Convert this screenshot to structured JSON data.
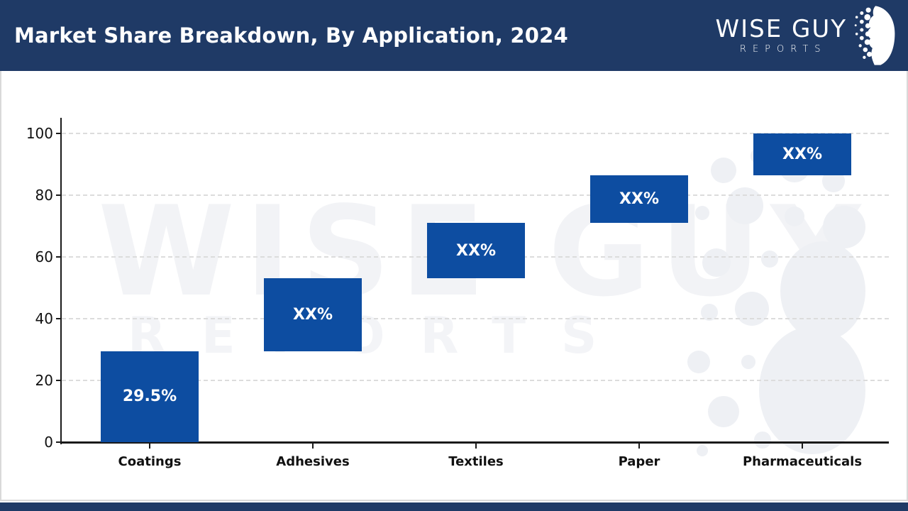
{
  "header": {
    "title": "Market Share Breakdown, By Application, 2024",
    "logo": {
      "line1": "WISE GUY",
      "line2": "REPORTS"
    },
    "bg_color": "#1F3A66",
    "text_color": "#FFFFFF"
  },
  "watermark": {
    "line1": "WISE GUY",
    "line2": "REPORTS",
    "color": "#F2F3F6"
  },
  "footer": {
    "bg_color": "#1F3A66"
  },
  "chart_data": {
    "type": "bar",
    "subtype": "waterfall",
    "title": "Market Share Breakdown, By Application, 2024",
    "categories": [
      "Coatings",
      "Adhesives",
      "Textiles",
      "Paper",
      "Pharmaceuticals"
    ],
    "segments": [
      {
        "category": "Coatings",
        "start": 0,
        "end": 29.5,
        "label": "29.5%"
      },
      {
        "category": "Adhesives",
        "start": 29.5,
        "end": 53.0,
        "label": "XX%"
      },
      {
        "category": "Textiles",
        "start": 53.0,
        "end": 71.0,
        "label": "XX%"
      },
      {
        "category": "Paper",
        "start": 71.0,
        "end": 86.5,
        "label": "XX%"
      },
      {
        "category": "Pharmaceuticals",
        "start": 86.5,
        "end": 100.0,
        "label": "XX%"
      }
    ],
    "yticks": [
      0,
      20,
      40,
      60,
      80,
      100
    ],
    "ylim": [
      0,
      105
    ],
    "xlabel": "",
    "ylabel": "",
    "grid": "horizontal-dashed",
    "legend": "none",
    "bar_color": "#0D4DA1",
    "bar_label_color": "#FFFFFF",
    "axis_color": "#1A1A1A",
    "grid_color": "#DCDCDC"
  }
}
